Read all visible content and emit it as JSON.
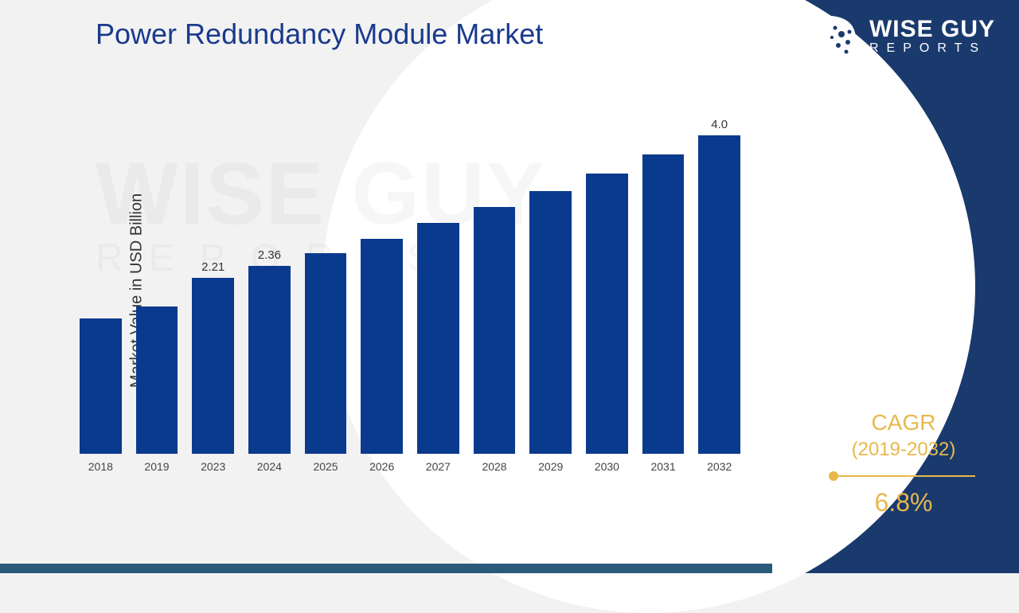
{
  "title": "Power Redundancy Module Market",
  "logo": {
    "main": "WISE GUY",
    "sub": "REPORTS"
  },
  "cagr": {
    "label": "CAGR",
    "range": "(2019-2032)",
    "value": "6.8%",
    "color": "#e8b84a"
  },
  "chart": {
    "type": "bar",
    "ylabel": "Market Value in USD Billion",
    "ylim": [
      0,
      4.2
    ],
    "bar_color": "#0a3a8e",
    "background_color": "#f2f2f2",
    "circle_color": "#ffffff",
    "sidebar_color": "#1a3a6e",
    "categories": [
      "2018",
      "2019",
      "2023",
      "2024",
      "2025",
      "2026",
      "2027",
      "2028",
      "2029",
      "2030",
      "2031",
      "2032"
    ],
    "values": [
      1.7,
      1.85,
      2.21,
      2.36,
      2.52,
      2.7,
      2.9,
      3.1,
      3.3,
      3.52,
      3.76,
      4.0
    ],
    "shown_value_labels": {
      "2": "2.21",
      "3": "2.36",
      "11": "4.0"
    },
    "label_fontsize": 14,
    "title_fontsize": 36,
    "title_color": "#1a3a8e",
    "ylabel_fontsize": 20,
    "bar_gap": 18
  },
  "watermark": {
    "main": "WISE GUY",
    "sub": "REPORTS"
  }
}
